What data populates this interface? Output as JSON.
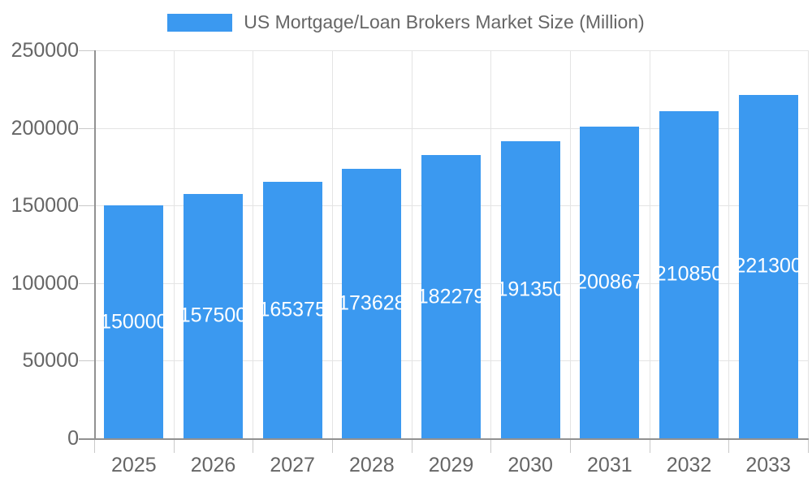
{
  "legend": {
    "label": "US Mortgage/Loan Brokers Market Size (Million)"
  },
  "chart_data": {
    "type": "bar",
    "title": "US Mortgage/Loan Brokers Market Size (Million)",
    "categories": [
      "2025",
      "2026",
      "2027",
      "2028",
      "2029",
      "2030",
      "2031",
      "2032",
      "2033"
    ],
    "values": [
      150000,
      157500,
      165375,
      173628,
      182279,
      191350,
      200867,
      210850,
      221300
    ],
    "xlabel": "",
    "ylabel": "",
    "ylim": [
      0,
      250000
    ],
    "yticks": [
      0,
      50000,
      100000,
      150000,
      200000,
      250000
    ],
    "legend_position": "top",
    "grid": true,
    "bar_labels_position": "inside-center",
    "colors": {
      "bar": "#3B99F0",
      "bar_label": "#FFFFFF",
      "axis_text": "#666666",
      "grid_line": "#E4E4E4",
      "tick_line": "#C9C9C9",
      "axis_line": "#919191",
      "background": "#FFFFFF"
    }
  }
}
